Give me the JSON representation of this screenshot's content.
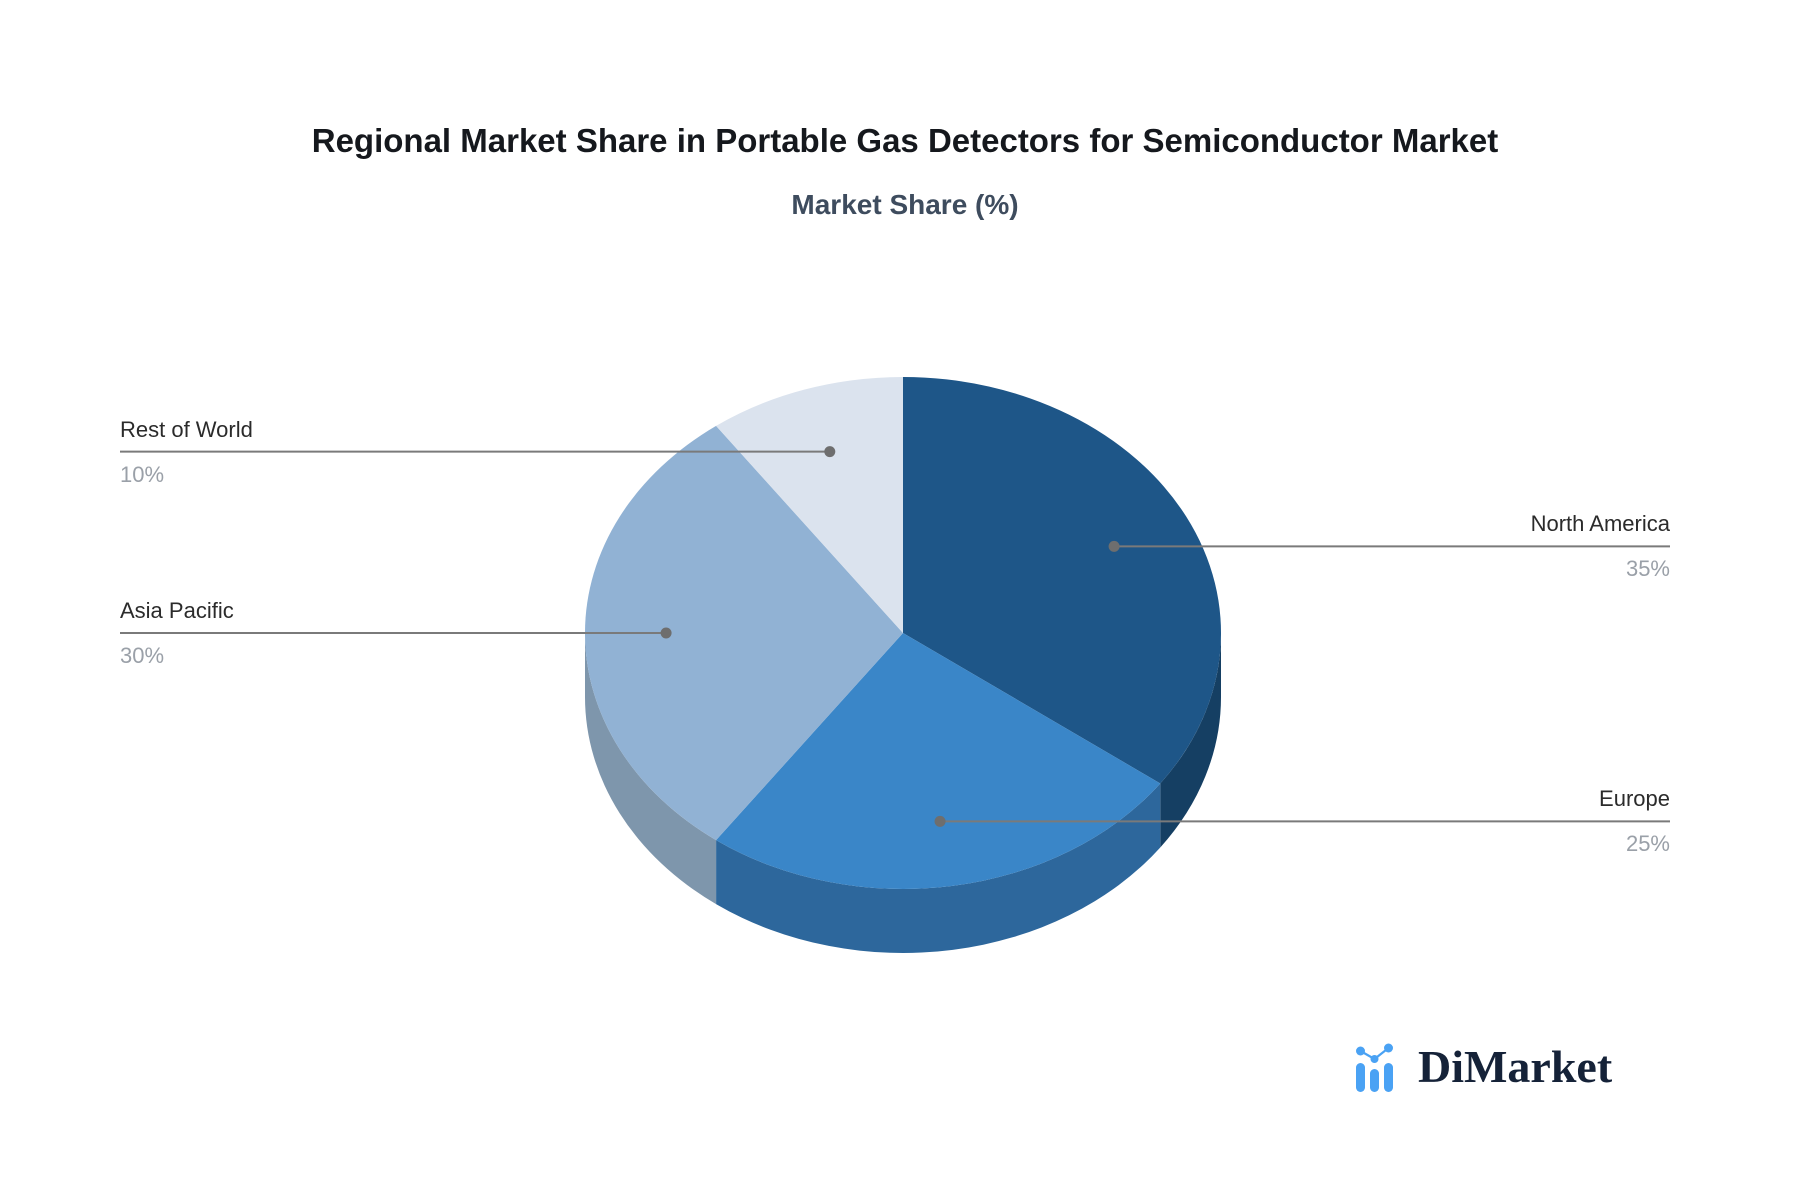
{
  "header": {
    "title": "Regional Market Share in Portable Gas Detectors for Semiconductor Market",
    "subtitle": "Market Share (%)"
  },
  "chart_data": {
    "type": "pie",
    "style": "3d-pie",
    "title": "Regional Market Share in Portable Gas Detectors for Semiconductor Market",
    "subtitle": "Market Share (%)",
    "unit": "%",
    "start_angle_deg": 0,
    "direction": "clockwise",
    "legend": "none",
    "label_style": "callout-leader-lines",
    "slices": [
      {
        "label": "North America",
        "value": 35,
        "display_value": "35%",
        "color": "#1e5688",
        "side_color": "#153f63"
      },
      {
        "label": "Europe",
        "value": 25,
        "display_value": "25%",
        "color": "#3a86c8",
        "side_color": "#2d679c"
      },
      {
        "label": "Asia Pacific",
        "value": 30,
        "display_value": "30%",
        "color": "#91b2d4",
        "side_color": "#7e96ac"
      },
      {
        "label": "Rest of World",
        "value": 10,
        "display_value": "10%",
        "color": "#dbe3ee",
        "side_color": "#b9c4d4"
      }
    ],
    "callout_colors": {
      "line": "#7a7a7a",
      "dot": "#6e6e6e",
      "name_text": "#2b2b2b",
      "pct_text": "#9aa0a8"
    }
  },
  "logo": {
    "text": "DiMarket",
    "icon": "bar-line-chart-icon",
    "icon_color": "#4aa2f4",
    "text_color": "#152238"
  }
}
